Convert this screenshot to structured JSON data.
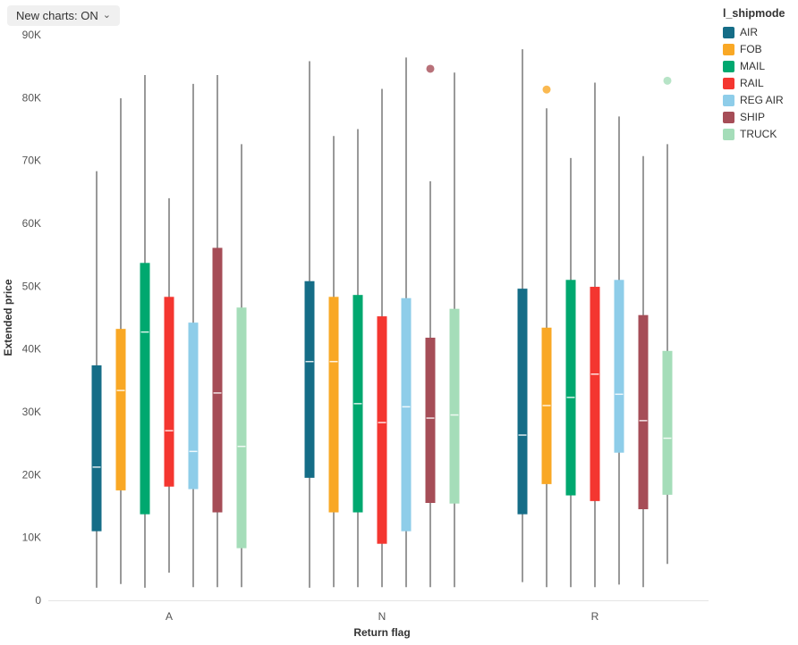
{
  "toolbar": {
    "new_charts_label": "New charts: ON",
    "chevron": "⌄"
  },
  "chart_data": {
    "type": "boxplot",
    "title": "",
    "xlabel": "Return flag",
    "ylabel": "Extended price",
    "ylim": [
      0,
      90000
    ],
    "grid": false,
    "legend_title": "l_shipmode",
    "legend_position": "top-right",
    "yticks": [
      {
        "value": 0,
        "label": "0"
      },
      {
        "value": 10000,
        "label": "10K"
      },
      {
        "value": 20000,
        "label": "20K"
      },
      {
        "value": 30000,
        "label": "30K"
      },
      {
        "value": 40000,
        "label": "40K"
      },
      {
        "value": 50000,
        "label": "50K"
      },
      {
        "value": 60000,
        "label": "60K"
      },
      {
        "value": 70000,
        "label": "70K"
      },
      {
        "value": 80000,
        "label": "80K"
      },
      {
        "value": 90000,
        "label": "90K"
      }
    ],
    "categories": [
      "A",
      "N",
      "R"
    ],
    "series": [
      {
        "name": "AIR",
        "color": "#156D87",
        "boxes": [
          {
            "category": "A",
            "min": 2000,
            "q1": 11000,
            "median": 21200,
            "q3": 37400,
            "max": 68300,
            "outliers": []
          },
          {
            "category": "N",
            "min": 2000,
            "q1": 19500,
            "median": 38000,
            "q3": 50800,
            "max": 85800,
            "outliers": []
          },
          {
            "category": "R",
            "min": 2900,
            "q1": 13700,
            "median": 26300,
            "q3": 49600,
            "max": 87700,
            "outliers": []
          }
        ]
      },
      {
        "name": "FOB",
        "color": "#F9A825",
        "boxes": [
          {
            "category": "A",
            "min": 2600,
            "q1": 17500,
            "median": 33400,
            "q3": 43200,
            "max": 79900,
            "outliers": []
          },
          {
            "category": "N",
            "min": 2100,
            "q1": 14000,
            "median": 38000,
            "q3": 48300,
            "max": 73900,
            "outliers": []
          },
          {
            "category": "R",
            "min": 2100,
            "q1": 18500,
            "median": 31000,
            "q3": 43400,
            "max": 78300,
            "outliers": [
              81300
            ]
          }
        ]
      },
      {
        "name": "MAIL",
        "color": "#00A86F",
        "boxes": [
          {
            "category": "A",
            "min": 2000,
            "q1": 13700,
            "median": 42700,
            "q3": 53700,
            "max": 83600,
            "outliers": []
          },
          {
            "category": "N",
            "min": 2100,
            "q1": 14000,
            "median": 31300,
            "q3": 48600,
            "max": 75000,
            "outliers": []
          },
          {
            "category": "R",
            "min": 2100,
            "q1": 16700,
            "median": 32300,
            "q3": 51000,
            "max": 70400,
            "outliers": []
          }
        ]
      },
      {
        "name": "RAIL",
        "color": "#F43630",
        "boxes": [
          {
            "category": "A",
            "min": 4400,
            "q1": 18100,
            "median": 27000,
            "q3": 48300,
            "max": 64000,
            "outliers": []
          },
          {
            "category": "N",
            "min": 2100,
            "q1": 9000,
            "median": 28300,
            "q3": 45200,
            "max": 81400,
            "outliers": []
          },
          {
            "category": "R",
            "min": 2100,
            "q1": 15800,
            "median": 36000,
            "q3": 49900,
            "max": 82400,
            "outliers": []
          }
        ]
      },
      {
        "name": "REG AIR",
        "color": "#8ECDE9",
        "boxes": [
          {
            "category": "A",
            "min": 2100,
            "q1": 17700,
            "median": 23700,
            "q3": 44200,
            "max": 82200,
            "outliers": []
          },
          {
            "category": "N",
            "min": 2100,
            "q1": 11000,
            "median": 30800,
            "q3": 48100,
            "max": 86400,
            "outliers": []
          },
          {
            "category": "R",
            "min": 2500,
            "q1": 23500,
            "median": 32800,
            "q3": 51000,
            "max": 77000,
            "outliers": []
          }
        ]
      },
      {
        "name": "SHIP",
        "color": "#A64D57",
        "boxes": [
          {
            "category": "A",
            "min": 2100,
            "q1": 14000,
            "median": 33000,
            "q3": 56100,
            "max": 83600,
            "outliers": []
          },
          {
            "category": "N",
            "min": 2100,
            "q1": 15500,
            "median": 29000,
            "q3": 41800,
            "max": 66700,
            "outliers": [
              84600
            ]
          },
          {
            "category": "R",
            "min": 2100,
            "q1": 14500,
            "median": 28600,
            "q3": 45400,
            "max": 70700,
            "outliers": []
          }
        ]
      },
      {
        "name": "TRUCK",
        "color": "#A5DDB9",
        "boxes": [
          {
            "category": "A",
            "min": 2100,
            "q1": 8300,
            "median": 24500,
            "q3": 46600,
            "max": 72600,
            "outliers": []
          },
          {
            "category": "N",
            "min": 2100,
            "q1": 15400,
            "median": 29500,
            "q3": 46400,
            "max": 84000,
            "outliers": []
          },
          {
            "category": "R",
            "min": 5800,
            "q1": 16800,
            "median": 25800,
            "q3": 39700,
            "max": 72600,
            "outliers": [
              82700
            ]
          }
        ]
      }
    ]
  }
}
